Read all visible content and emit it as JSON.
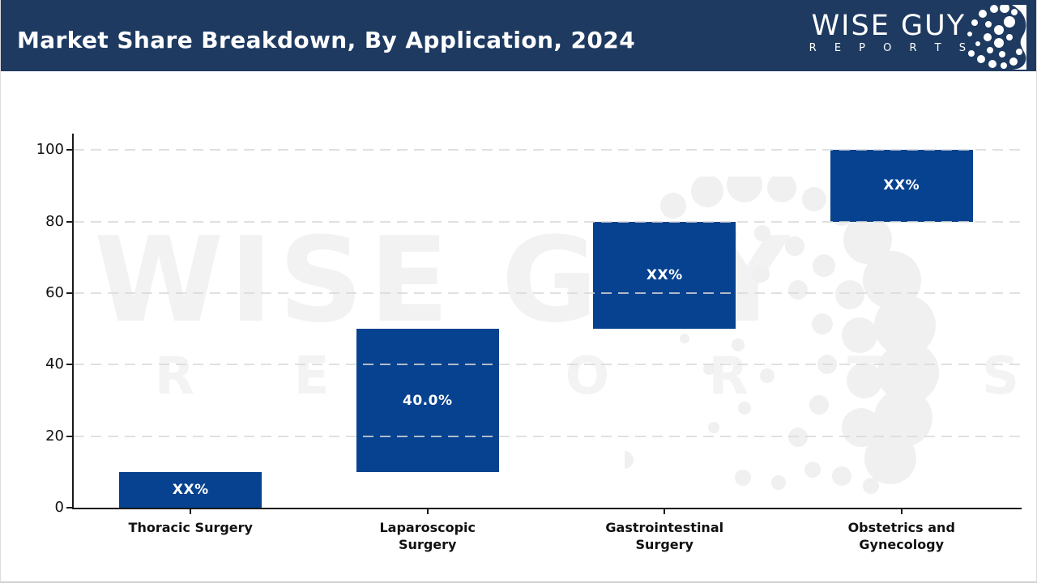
{
  "header": {
    "title": "Market Share Breakdown, By Application, 2024",
    "logo": {
      "wise_guy": "WISE GUY",
      "reports": "R E P O R T S"
    }
  },
  "watermark": {
    "line1": "WISE GUY",
    "line2": "R E P O R T S"
  },
  "chart_data": {
    "type": "bar",
    "variant": "floating-range",
    "title": "Market Share Breakdown, By Application, 2024",
    "categories": [
      "Thoracic Surgery",
      "Laparoscopic Surgery",
      "Gastrointestinal Surgery",
      "Obstetrics and Gynecology"
    ],
    "category_lines": [
      [
        "Thoracic Surgery"
      ],
      [
        "Laparoscopic",
        "Surgery"
      ],
      [
        "Gastrointestinal",
        "Surgery"
      ],
      [
        "Obstetrics and",
        "Gynecology"
      ]
    ],
    "bars": [
      {
        "category": "Thoracic Surgery",
        "from": 0,
        "to": 10,
        "label": "XX%"
      },
      {
        "category": "Laparoscopic Surgery",
        "from": 10,
        "to": 50,
        "label": "40.0%"
      },
      {
        "category": "Gastrointestinal Surgery",
        "from": 50,
        "to": 80,
        "label": "XX%"
      },
      {
        "category": "Obstetrics and Gynecology",
        "from": 80,
        "to": 100,
        "label": "XX%"
      }
    ],
    "y_ticks": [
      0,
      20,
      40,
      60,
      80,
      100
    ],
    "ylim": [
      0,
      104.6
    ],
    "xlabel": "",
    "ylabel": "",
    "legend": "none",
    "grid": "horizontal-dashed",
    "colors": {
      "bar": "#06428f",
      "header_bg": "#1e3a61",
      "grid": "#d9d9d9",
      "axis": "#1a1a1a",
      "watermark": "#f2f2f2",
      "border": "#d2d2d2"
    }
  }
}
